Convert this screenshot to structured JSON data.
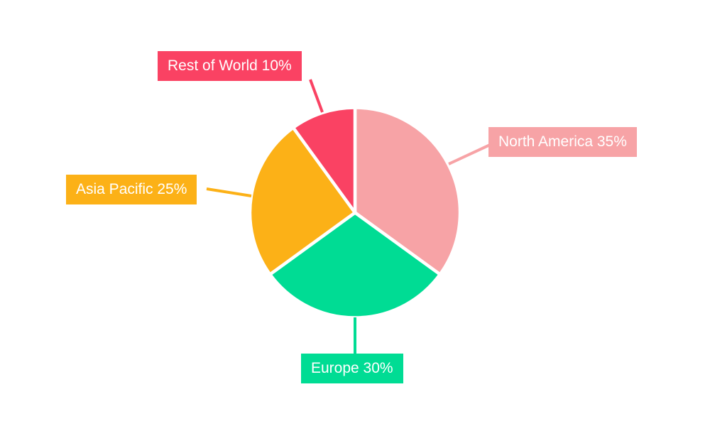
{
  "chart_data": {
    "type": "pie",
    "title": "",
    "categories": [
      "North America",
      "Europe",
      "Asia Pacific",
      "Rest of World"
    ],
    "values": [
      35,
      30,
      25,
      10
    ],
    "unit": "%",
    "colors": [
      "#F7A3A6",
      "#00DC94",
      "#FCB117",
      "#FA4263"
    ],
    "callouts": [
      {
        "text": "North America 35%"
      },
      {
        "text": "Europe 30%"
      },
      {
        "text": "Asia Pacific 25%"
      },
      {
        "text": "Rest of World 10%"
      }
    ],
    "start_angle": "top",
    "direction": "clockwise",
    "slice_gap_color": "#ffffff",
    "background": "#ffffff",
    "legend": "none",
    "label_text_color": "#ffffff"
  }
}
